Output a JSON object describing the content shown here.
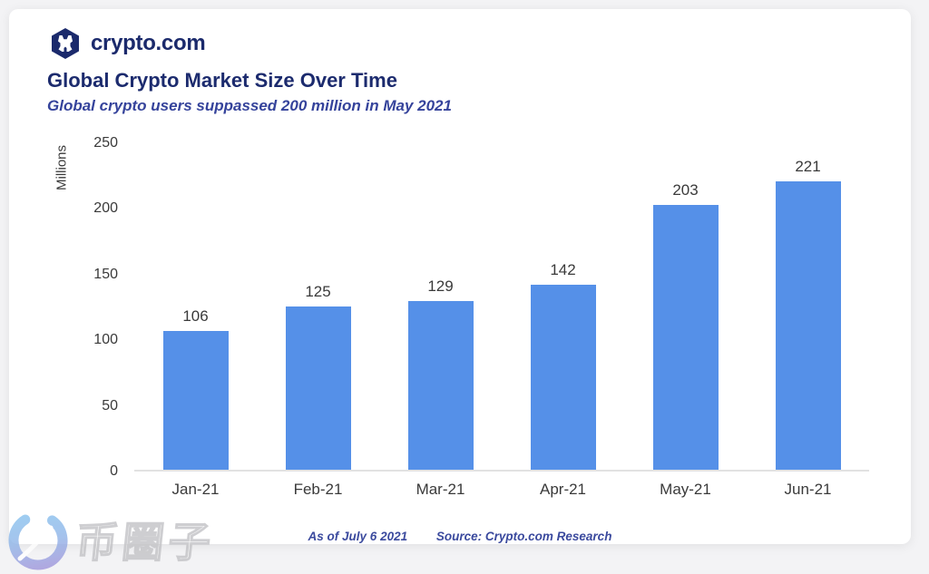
{
  "brand": {
    "name": "crypto.com"
  },
  "header": {
    "title": "Global Crypto Market Size Over Time",
    "subtitle": "Global crypto users suppassed 200 million in May 2021"
  },
  "chart_data": {
    "type": "bar",
    "categories": [
      "Jan-21",
      "Feb-21",
      "Mar-21",
      "Apr-21",
      "May-21",
      "Jun-21"
    ],
    "values": [
      106,
      125,
      129,
      142,
      203,
      221
    ],
    "title": "Global Crypto Market Size Over Time",
    "xlabel": "",
    "ylabel": "Millions",
    "yticks": [
      0,
      50,
      100,
      150,
      200,
      250
    ],
    "ylim": [
      0,
      250
    ],
    "grid": false,
    "value_labels_shown": true,
    "bar_color": "#5590e8",
    "legend": "none"
  },
  "footer": {
    "as_of": "As of July 6 2021",
    "source": "Source: Crypto.com Research"
  },
  "watermark": {
    "text": "币圈子"
  },
  "colors": {
    "title_navy": "#1c2b6e",
    "subtitle_blue": "#35439b",
    "bar_blue": "#5590e8",
    "axis_text": "#3a3a3a",
    "baseline_gray": "#e2e2e2",
    "card_bg": "#ffffff",
    "page_bg": "#f3f3f5"
  }
}
